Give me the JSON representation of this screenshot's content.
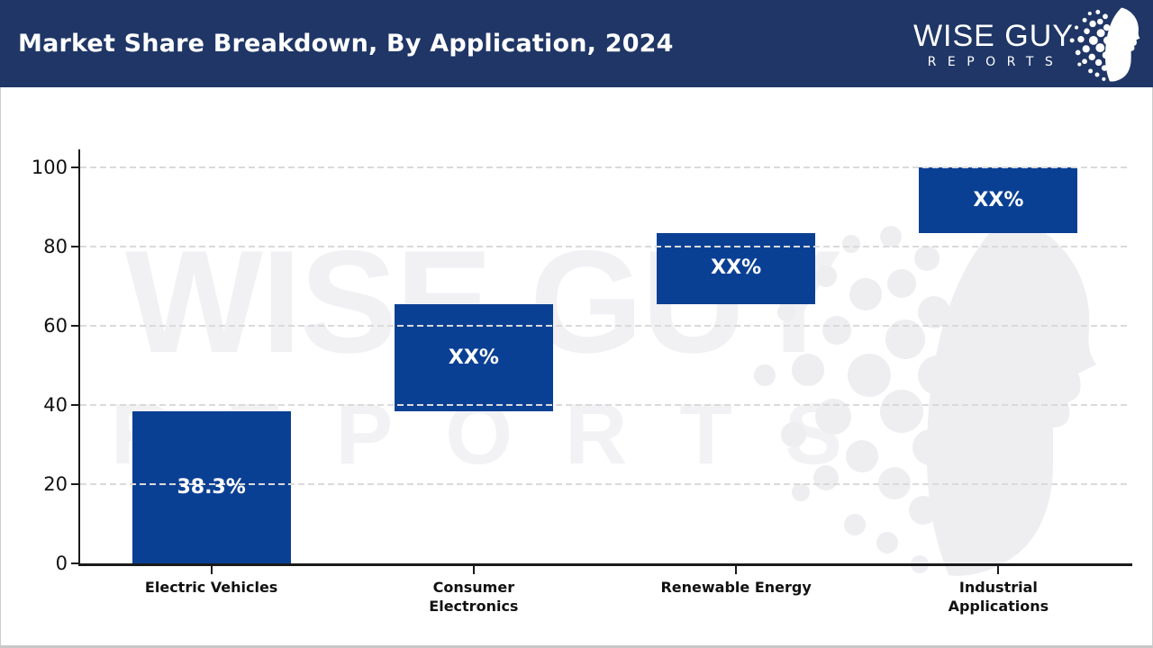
{
  "header": {
    "title": "Market Share Breakdown, By Application, 2024",
    "logo": {
      "line1": "WISE GUY",
      "line2": "REPORTS"
    }
  },
  "watermark": {
    "line1": "WISE GUY",
    "line2": "REPORTS"
  },
  "colors": {
    "header_bg": "#1f3666",
    "bar": "#0a4094",
    "bar_label": "#ffffff",
    "grid": "#dadada",
    "axis": "#1a1a1a",
    "watermark": "#f1f1f4"
  },
  "chart_data": {
    "type": "bar",
    "subtype": "waterfall-floating-bars",
    "title": "Market Share Breakdown, By Application, 2024",
    "xlabel": "",
    "ylabel": "",
    "ylim": [
      0,
      100
    ],
    "yticks": [
      0,
      20,
      40,
      60,
      80,
      100
    ],
    "grid": "horizontal dashed, drawn over bars",
    "legend": "none",
    "categories": [
      "Electric Vehicles",
      "Consumer Electronics",
      "Renewable Energy",
      "Industrial Applications"
    ],
    "segments": [
      {
        "category": "Electric Vehicles",
        "category_lines": [
          "Electric Vehicles"
        ],
        "start": 0,
        "end": 38.3,
        "label": "38.3%"
      },
      {
        "category": "Consumer Electronics",
        "category_lines": [
          "Consumer",
          "Electronics"
        ],
        "start": 38.3,
        "end": 65.5,
        "label": "XX%"
      },
      {
        "category": "Renewable Energy",
        "category_lines": [
          "Renewable Energy"
        ],
        "start": 65.5,
        "end": 83.4,
        "label": "XX%"
      },
      {
        "category": "Industrial Applications",
        "category_lines": [
          "Industrial",
          "Applications"
        ],
        "start": 83.4,
        "end": 100,
        "label": "XX%"
      }
    ]
  }
}
